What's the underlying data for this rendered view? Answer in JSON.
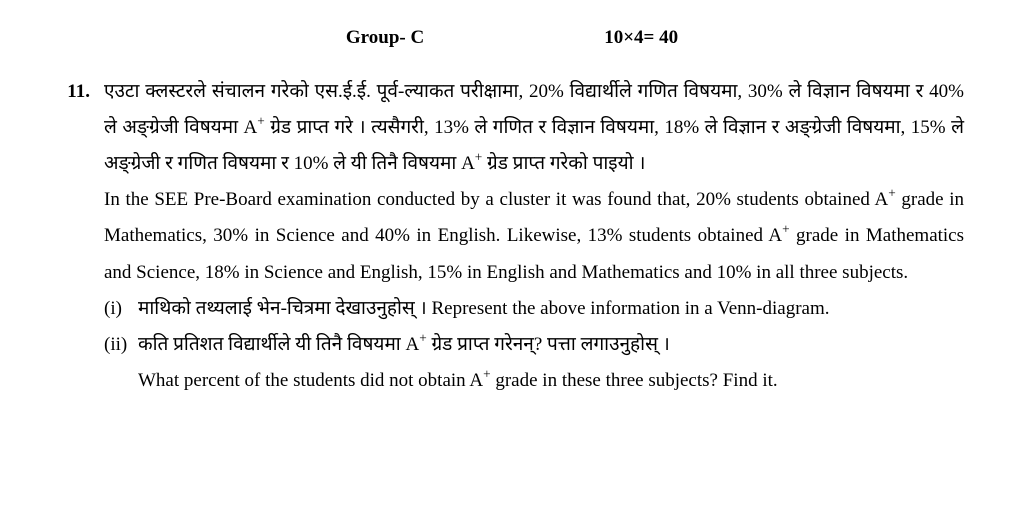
{
  "header": {
    "group_label": "Group- C",
    "marks_scheme": "10×4= 40"
  },
  "question": {
    "number": "11.",
    "nepali_text": "एउटा क्लस्टरले संचालन गरेको एस.ई.ई. पूर्व-ल्याकत परीक्षामा, 20% विद्यार्थीले गणित विषयमा, 30% ले विज्ञान विषयमा र 40% ले अङ्ग्रेजी विषयमा A⁺ ग्रेड प्राप्त गरे । त्यसैगरी, 13% ले गणित र विज्ञान विषयमा, 18% ले विज्ञान र अङ्ग्रेजी विषयमा, 15% ले अङ्ग्रेजी र गणित विषयमा र 10% ले यी तिनै विषयमा A⁺ ग्रेड प्राप्त गरेको पाइयो ।",
    "english_text": "In the SEE Pre-Board examination conducted by a cluster it was found that, 20% students obtained A⁺ grade in Mathematics, 30% in Science and 40% in English. Likewise, 13% students obtained A⁺ grade in Mathematics and Science, 18% in Science and English, 15% in English and Mathematics and 10% in all three subjects.",
    "subparts": [
      {
        "num": "(i)",
        "nepali": "माथिको तथ्यलाई भेन-चित्रमा देखाउनुहोस् ।",
        "english": "Represent the above information in a Venn-diagram."
      },
      {
        "num": "(ii)",
        "nepali": "कति प्रतिशत विद्यार्थीले यी तिनै विषयमा A⁺ ग्रेड प्राप्त गरेनन्? पत्ता लगाउनुहोस् ।",
        "english": "What percent of the students did not obtain A⁺ grade in these three subjects? Find it."
      }
    ]
  }
}
